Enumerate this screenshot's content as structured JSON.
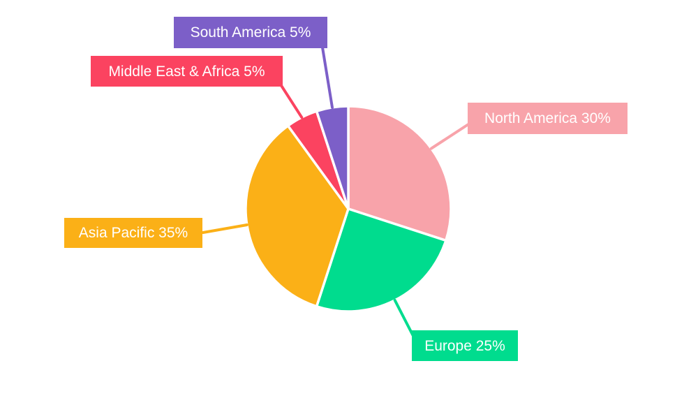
{
  "chart_data": {
    "type": "pie",
    "title": "",
    "unit": "%",
    "start_angle_deg": -90,
    "direction": "clockwise",
    "legend_position": "callout-labels",
    "background_color": "#FFFFFF",
    "label_text_color": "#FFFFFF",
    "slice_separator_color": "#FFFFFF",
    "categories": [
      "North America",
      "Europe",
      "Asia Pacific",
      "Middle East & Africa",
      "South America"
    ],
    "values": [
      30,
      25,
      35,
      5,
      5
    ],
    "slices": [
      {
        "id": "north-america",
        "label": "North America",
        "value": 30,
        "display": "North America 30%",
        "color": "#F8A3AA"
      },
      {
        "id": "europe",
        "label": "Europe",
        "value": 25,
        "display": "Europe 25%",
        "color": "#00DC8E"
      },
      {
        "id": "asia-pacific",
        "label": "Asia Pacific",
        "value": 35,
        "display": "Asia Pacific 35%",
        "color": "#FBB017"
      },
      {
        "id": "middle-east-africa",
        "label": "Middle East & Africa",
        "value": 5,
        "display": "Middle East & Africa 5%",
        "color": "#FB4360"
      },
      {
        "id": "south-america",
        "label": "South America",
        "value": 5,
        "display": "South America 5%",
        "color": "#7C5FC8"
      }
    ]
  }
}
